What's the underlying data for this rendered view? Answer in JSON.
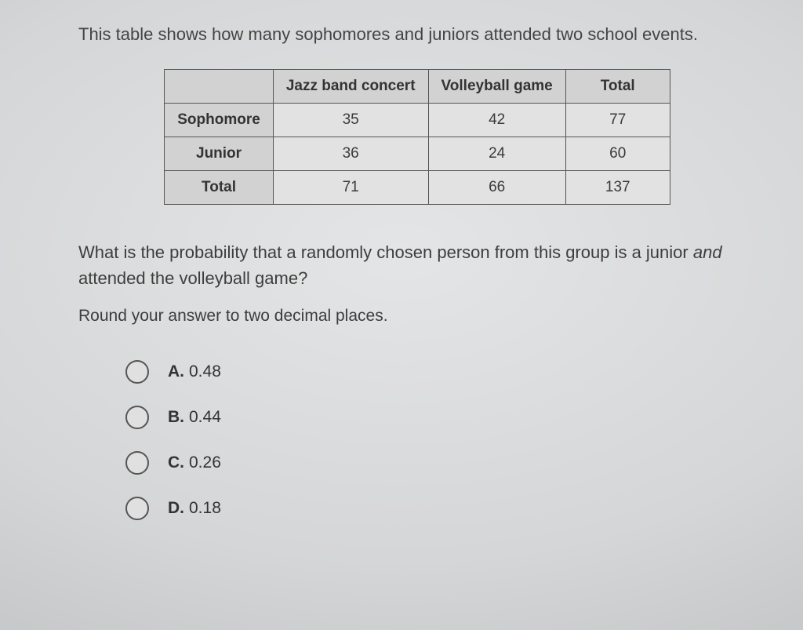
{
  "intro": "This table shows how many sophomores and juniors attended two school events.",
  "table": {
    "columns": [
      "",
      "Jazz band concert",
      "Volleyball game",
      "Total"
    ],
    "rows": [
      {
        "label": "Sophomore",
        "cells": [
          "35",
          "42",
          "77"
        ]
      },
      {
        "label": "Junior",
        "cells": [
          "36",
          "24",
          "60"
        ]
      },
      {
        "label": "Total",
        "cells": [
          "71",
          "66",
          "137"
        ]
      }
    ],
    "header_bg": "#cfcfcf",
    "cell_bg": "#e2e2e2",
    "border_color": "#555555",
    "fontsize": 19
  },
  "question_pre": "What is the probability that a randomly chosen person from this group is a junior ",
  "question_em": "and",
  "question_post": " attended the volleyball game?",
  "instruction": "Round your answer to two decimal places.",
  "options": [
    {
      "letter": "A.",
      "text": "0.48"
    },
    {
      "letter": "B.",
      "text": "0.44"
    },
    {
      "letter": "C.",
      "text": "0.26"
    },
    {
      "letter": "D.",
      "text": "0.18"
    }
  ],
  "colors": {
    "page_bg": "#dedfe0",
    "text": "#3a3a3a",
    "radio_border": "#555555"
  }
}
